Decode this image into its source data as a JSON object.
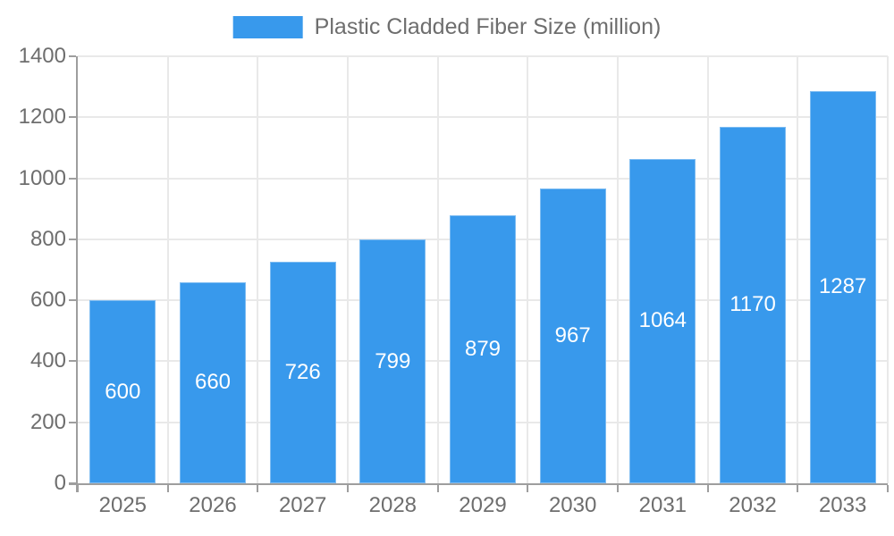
{
  "chart_data": {
    "type": "bar",
    "categories": [
      "2025",
      "2026",
      "2027",
      "2028",
      "2029",
      "2030",
      "2031",
      "2032",
      "2033"
    ],
    "series": [
      {
        "name": "Plastic Cladded Fiber Size (million)",
        "values": [
          600,
          660,
          726,
          799,
          879,
          967,
          1064,
          1170,
          1287
        ]
      }
    ],
    "xlabel": "",
    "ylabel": "",
    "ylim": [
      0,
      1400
    ],
    "ytick_step": 200,
    "ytick_labels": [
      "0",
      "200",
      "400",
      "600",
      "800",
      "1000",
      "1200",
      "1400"
    ],
    "grid": true,
    "legend_position": "top-center",
    "bar_labels_inside": true,
    "colors": {
      "bar": "#3899EC",
      "bar_label": "#FFFFFF",
      "grid": "#E9E9E9",
      "axis": "#9E9E9E",
      "text": "#6E6E6E"
    }
  }
}
